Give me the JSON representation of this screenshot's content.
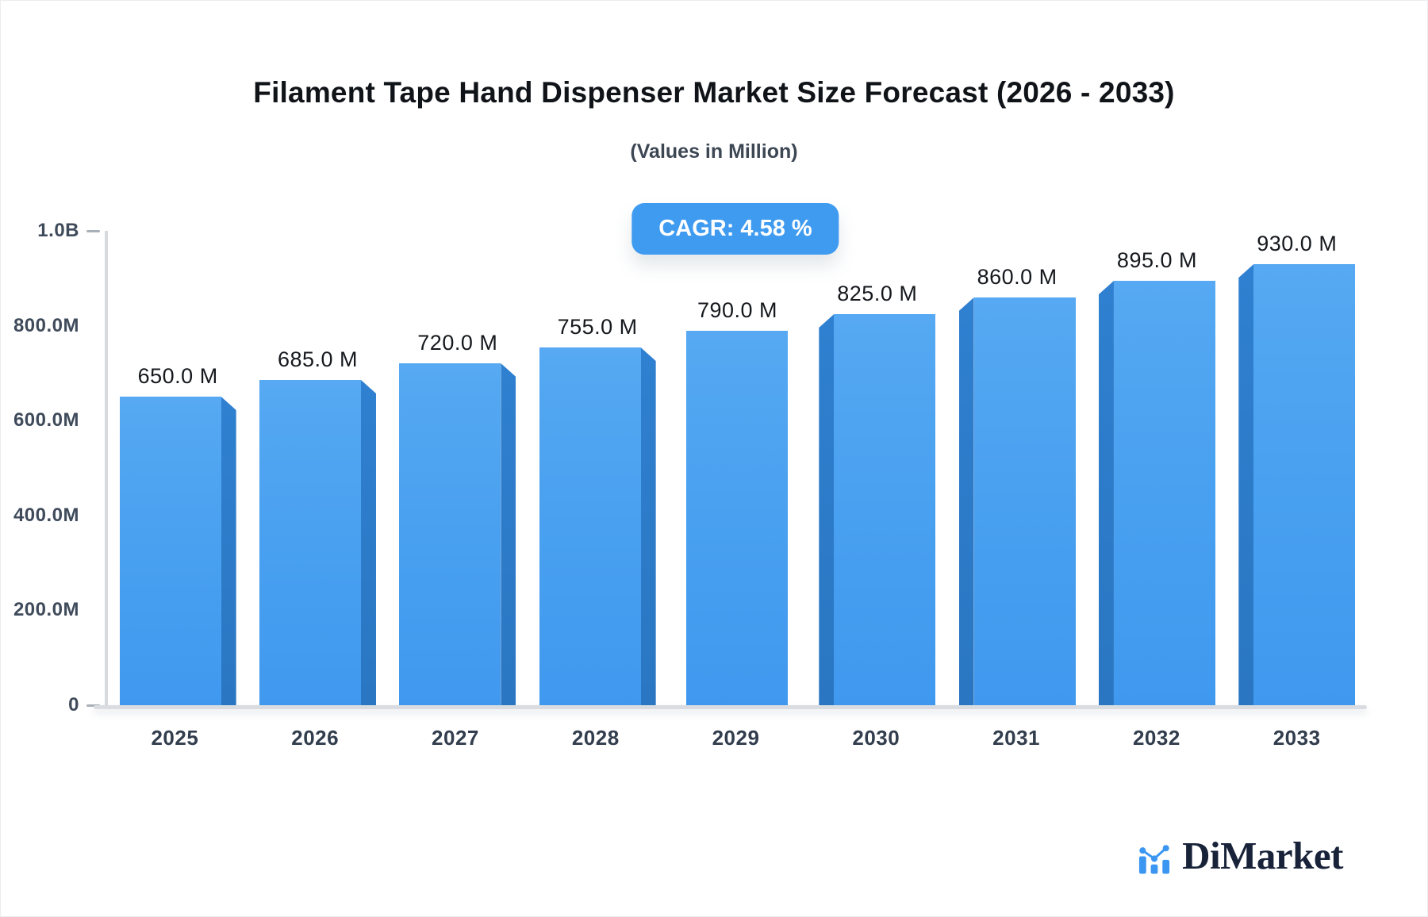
{
  "header": {
    "title": "Filament Tape Hand Dispenser Market Size Forecast (2026 - 2033)",
    "subtitle": "(Values in Million)"
  },
  "cagr_badge": {
    "label": "CAGR: 4.58 %",
    "background": "#3f9bf0",
    "text_color": "#ffffff"
  },
  "chart_data": {
    "type": "bar",
    "title": "Filament Tape Hand Dispenser Market Size Forecast (2026 - 2033)",
    "subtitle": "(Values in Million)",
    "categories": [
      "2025",
      "2026",
      "2027",
      "2028",
      "2029",
      "2030",
      "2031",
      "2032",
      "2033"
    ],
    "values": [
      650,
      685,
      720,
      755,
      790,
      825,
      860,
      895,
      930
    ],
    "value_labels": [
      "650.0 M",
      "685.0 M",
      "720.0 M",
      "755.0 M",
      "790.0 M",
      "825.0 M",
      "860.0 M",
      "895.0 M",
      "930.0 M"
    ],
    "unit": "Million",
    "annotation": "CAGR: 4.58 %",
    "xlabel": "",
    "ylabel": "",
    "ylim": [
      0,
      1000
    ],
    "grid": false,
    "legend": false,
    "y_ticks": [
      {
        "label": "1.0B",
        "value": 1000,
        "dash": true
      },
      {
        "label": "800.0M",
        "value": 800,
        "dash": false
      },
      {
        "label": "600.0M",
        "value": 600,
        "dash": false
      },
      {
        "label": "400.0M",
        "value": 400,
        "dash": false
      },
      {
        "label": "200.0M",
        "value": 200,
        "dash": false
      },
      {
        "label": "0",
        "value": 0,
        "dash": true
      }
    ],
    "bar_colors": {
      "face": "#4aa1f0",
      "side": "#2d7cca"
    },
    "bevel_note": "3d bevel: bars left of center shaded on right edge, bars right of center shaded on left edge, center bar flat"
  },
  "footer": {
    "brand": "DiMarket",
    "logo_icon": "mini-bar-chart-icon",
    "brand_color": "#18233a",
    "icon_color": "#3b96f2"
  }
}
